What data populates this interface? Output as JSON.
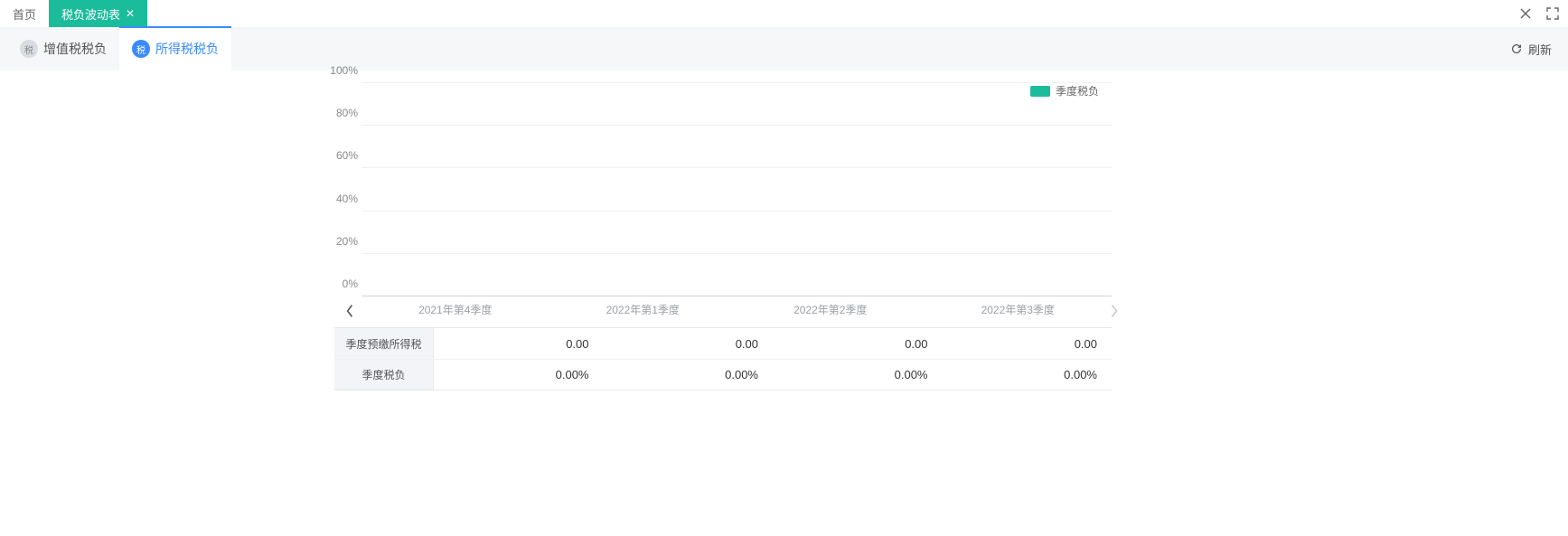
{
  "page_tabs": {
    "home": "首页",
    "active": {
      "label": "税负波动表"
    }
  },
  "sub_tabs": {
    "vat": "增值税税负",
    "income": "所得税税负",
    "active_index": 1
  },
  "toolbar": {
    "refresh_label": "刷新"
  },
  "chart": {
    "type": "bar",
    "legend_label": "季度税负",
    "legend_color": "#1abc9c",
    "ylim": [
      0,
      100
    ],
    "y_ticks": [
      {
        "pos": 0,
        "label": "0%"
      },
      {
        "pos": 20,
        "label": "20%"
      },
      {
        "pos": 40,
        "label": "40%"
      },
      {
        "pos": 60,
        "label": "60%"
      },
      {
        "pos": 80,
        "label": "80%"
      },
      {
        "pos": 100,
        "label": "100%"
      }
    ],
    "grid_positions_pct": [
      0,
      20,
      40,
      60,
      80,
      100
    ],
    "grid_color": "#eef0f2",
    "axis_color": "#cfd4d9",
    "background_color": "#ffffff",
    "categories": [
      "2021年第4季度",
      "2022年第1季度",
      "2022年第2季度",
      "2022年第3季度"
    ],
    "values": [
      0,
      0,
      0,
      0
    ],
    "bar_color": "#1abc9c"
  },
  "table": {
    "row_headers": [
      "季度预缴所得税",
      "季度税负"
    ],
    "rows": [
      [
        "0.00",
        "0.00",
        "0.00",
        "0.00"
      ],
      [
        "0.00%",
        "0.00%",
        "0.00%",
        "0.00%"
      ]
    ],
    "header_bg": "#f2f4f7",
    "border_color": "#e7e9ec"
  }
}
